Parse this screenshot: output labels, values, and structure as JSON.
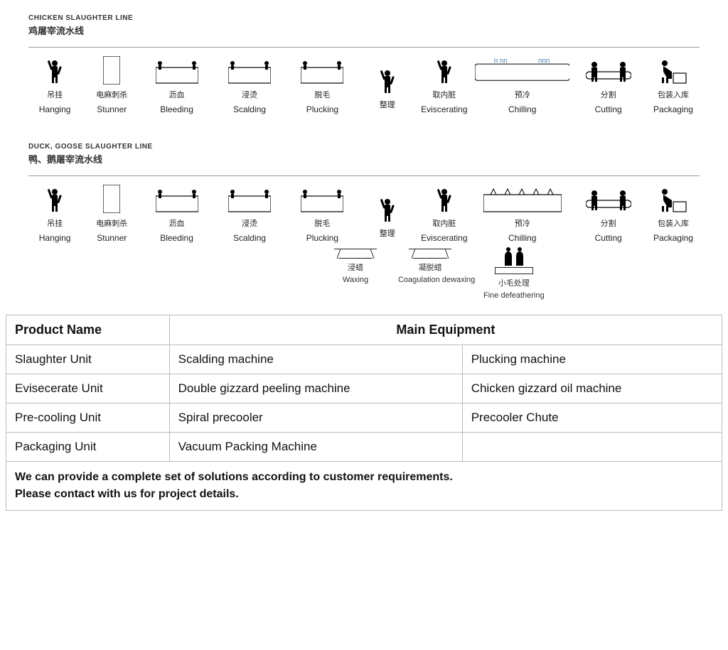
{
  "colors": {
    "text": "#222222",
    "border": "#bbbbbb",
    "icon": "#000000",
    "water": "#4a7fb8",
    "background": "#ffffff"
  },
  "chicken_line": {
    "title_en": "CHICKEN SLAUGHTER LINE",
    "title_cn": "鸡屠宰流水线",
    "steps": [
      {
        "cn": "吊挂",
        "en": "Hanging",
        "icon": "worker"
      },
      {
        "cn": "电麻刺杀",
        "en": "Stunner",
        "icon": "box"
      },
      {
        "cn": "沥血",
        "en": "Bleeding",
        "icon": "tank"
      },
      {
        "cn": "浸烫",
        "en": "Scalding",
        "icon": "tank"
      },
      {
        "cn": "脱毛",
        "en": "Plucking",
        "icon": "tank"
      },
      {
        "cn": "整理",
        "en": "",
        "icon": "worker"
      },
      {
        "cn": "取内脏",
        "en": "Eviscerating",
        "icon": "worker"
      },
      {
        "cn": "预冷",
        "en": "Chilling",
        "icon": "chiller"
      },
      {
        "cn": "分割",
        "en": "Cutting",
        "icon": "workers2"
      },
      {
        "cn": "包装入库",
        "en": "Packaging",
        "icon": "packer"
      }
    ]
  },
  "duck_line": {
    "title_en": "DUCK, GOOSE SLAUGHTER LINE",
    "title_cn": "鸭、鹅屠宰流水线",
    "steps": [
      {
        "cn": "吊挂",
        "en": "Hanging",
        "icon": "worker"
      },
      {
        "cn": "电麻刺杀",
        "en": "Stunner",
        "icon": "box"
      },
      {
        "cn": "沥血",
        "en": "Bleeding",
        "icon": "tank"
      },
      {
        "cn": "浸烫",
        "en": "Scalding",
        "icon": "tank"
      },
      {
        "cn": "脱毛",
        "en": "Plucking",
        "icon": "tank"
      },
      {
        "cn": "整理",
        "en": "",
        "icon": "worker"
      },
      {
        "cn": "取内脏",
        "en": "Eviscerating",
        "icon": "worker"
      },
      {
        "cn": "预冷",
        "en": "Chilling",
        "icon": "chiller2"
      },
      {
        "cn": "分割",
        "en": "Cutting",
        "icon": "workers2"
      },
      {
        "cn": "包装入库",
        "en": "Packaging",
        "icon": "packer"
      }
    ],
    "sub_steps": [
      {
        "cn": "浸蜡",
        "en": "Waxing"
      },
      {
        "cn": "凝脱蜡",
        "en": "Coagulation dewaxing"
      },
      {
        "cn": "小毛处理",
        "en": "Fine defeathering"
      }
    ]
  },
  "table": {
    "headers": [
      "Product Name",
      "Main Equipment"
    ],
    "rows": [
      [
        "Slaughter Unit",
        "Scalding machine",
        "Plucking machine"
      ],
      [
        "Evisecerate Unit",
        "Double gizzard peeling machine",
        "Chicken gizzard oil machine"
      ],
      [
        "Pre-cooling Unit",
        "Spiral precooler",
        "Precooler Chute"
      ],
      [
        "Packaging Unit",
        "Vacuum Packing Machine",
        ""
      ]
    ],
    "footer": "We can provide a complete set of solutions according to customer requirements.\nPlease contact with us for project details."
  }
}
